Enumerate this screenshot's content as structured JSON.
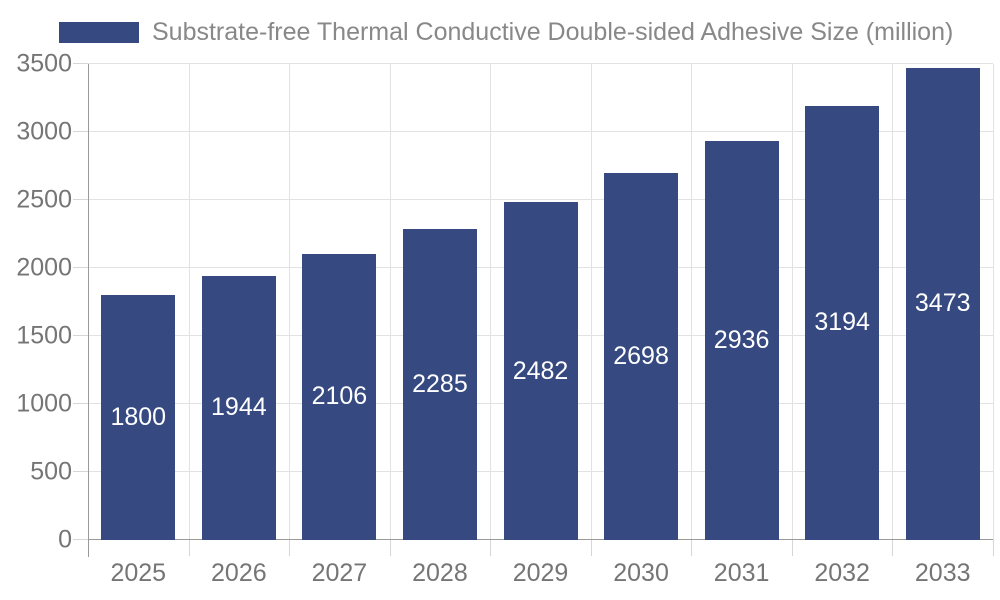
{
  "legend": {
    "label": "Substrate-free Thermal Conductive Double-sided Adhesive Size (million)",
    "swatch_color": "#364A81",
    "text_color": "#888888"
  },
  "chart_data": {
    "type": "bar",
    "title": "Substrate-free Thermal Conductive Double-sided Adhesive Size (million)",
    "categories": [
      "2025",
      "2026",
      "2027",
      "2028",
      "2029",
      "2030",
      "2031",
      "2032",
      "2033"
    ],
    "values": [
      1800,
      1944,
      2106,
      2285,
      2482,
      2698,
      2936,
      3194,
      3473
    ],
    "value_labels": [
      "1800",
      "1944",
      "2106",
      "2285",
      "2482",
      "2698",
      "2936",
      "3194",
      "3473"
    ],
    "xlabel": "",
    "ylabel": "",
    "ylim": [
      0,
      3500
    ],
    "ytick_step": 500,
    "ytick_labels": [
      "0",
      "500",
      "1000",
      "1500",
      "2000",
      "2500",
      "3000",
      "3500"
    ],
    "grid": true,
    "legend_position": "top-left",
    "value_label_position": "inside-center",
    "colors": {
      "bar": "#364A81",
      "value_label": "#FFFFFF",
      "axis_text": "#757575",
      "grid": "#E2E2E2",
      "axis_line": "#999999",
      "tick": "#D6D6D6",
      "background": "#FFFFFF"
    }
  }
}
